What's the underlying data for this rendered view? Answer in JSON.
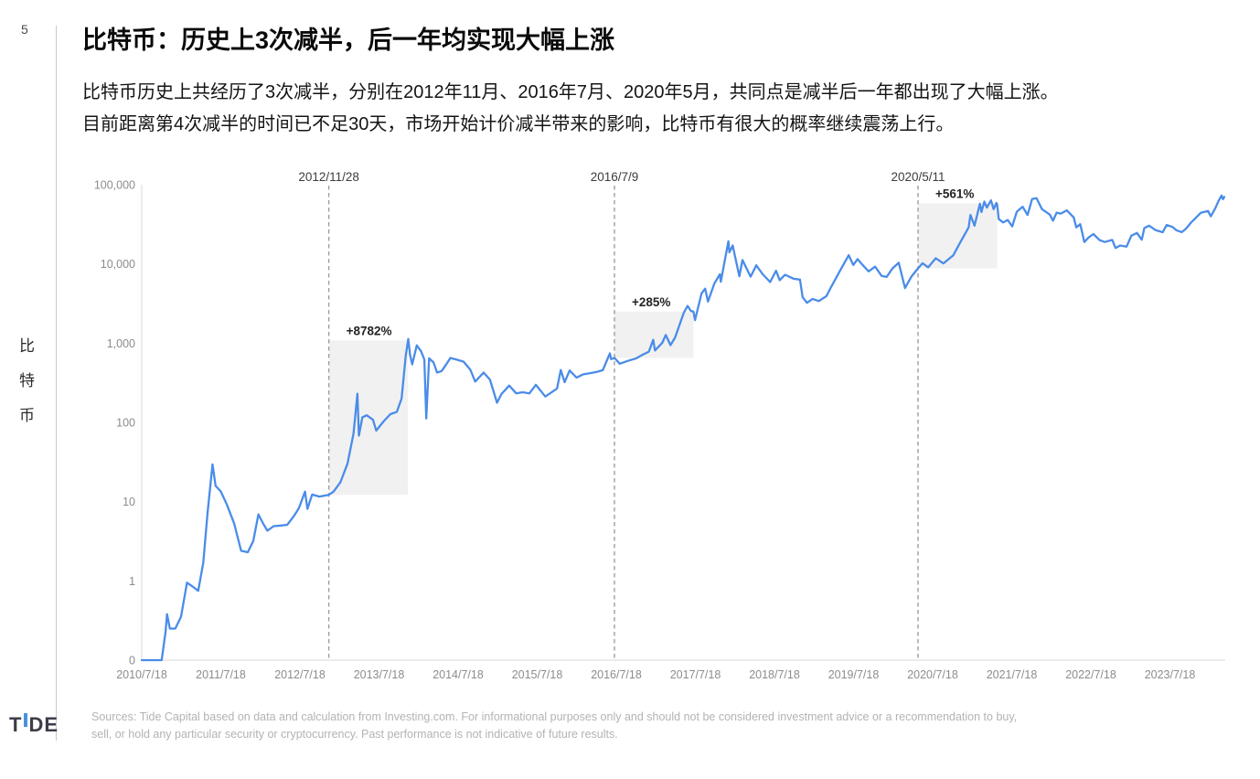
{
  "page": {
    "number": "5"
  },
  "sidebar": {
    "vertical_label": "比特币",
    "logo": {
      "left": "T",
      "right": "DE"
    }
  },
  "header": {
    "title": "比特币：历史上3次减半，后一年均实现大幅上涨"
  },
  "intro": {
    "line1": "比特币历史上共经历了3次减半，分别在2012年11月、2016年7月、2020年5月，共同点是减半后一年都出现了大幅上涨。",
    "line2": "目前距离第4次减半的时间已不足30天，市场开始计价减半带来的影响，比特币有很大的概率继续震荡上行。"
  },
  "footer": {
    "line1": "Sources: Tide Capital based on data and calculation from Investing.com. For informational purposes only and should not be considered investment advice or a recommendation to buy,",
    "line2": "sell, or hold any particular security or cryptocurrency. Past performance is not indicative of future results."
  },
  "colors": {
    "price_line": "#4a8ce8",
    "accent_blue": "#4a90e2",
    "dashed_line": "#9e9e9e",
    "region_fill": "#f1f1f1",
    "axis_line": "#d8d8d8",
    "tick_text": "#8c8c8c",
    "date_label": "#3d3d3d",
    "gain_label": "#242424"
  },
  "chart_data": {
    "type": "line",
    "title": "",
    "xlabel": "",
    "ylabel": "",
    "x_axis": {
      "start_date": "2010-07-18",
      "tick_labels": [
        "2010/7/18",
        "2011/7/18",
        "2012/7/18",
        "2013/7/18",
        "2014/7/18",
        "2015/7/18",
        "2016/7/18",
        "2017/7/18",
        "2018/7/18",
        "2019/7/18",
        "2020/7/18",
        "2021/7/18",
        "2022/7/18",
        "2023/7/18"
      ]
    },
    "y_axis": {
      "scale": "log",
      "tick_labels": [
        "0",
        "1",
        "10",
        "100",
        "1,000",
        "10,000",
        "100,000"
      ],
      "tick_values": [
        0.1,
        1,
        10,
        100,
        1000,
        10000,
        100000
      ],
      "range": [
        0.1,
        100000
      ]
    },
    "grid": false,
    "legend": false,
    "halvings": [
      {
        "date": "2012-11-28",
        "label": "2012/11/28",
        "gain_label": "+8782%",
        "price_at_halving": 12.2,
        "price_one_year_later": 1083
      },
      {
        "date": "2016-07-09",
        "label": "2016/7/9",
        "gain_label": "+285%",
        "price_at_halving": 650,
        "price_one_year_later": 2502
      },
      {
        "date": "2020-05-11",
        "label": "2020/5/11",
        "gain_label": "+561%",
        "price_at_halving": 8800,
        "price_one_year_later": 58170
      }
    ],
    "series": [
      {
        "name": "BTC price (USD)",
        "points": [
          [
            "2010-07-18",
            0.07
          ],
          [
            "2010-08-20",
            0.07
          ],
          [
            "2010-09-15",
            0.06
          ],
          [
            "2010-10-10",
            0.09
          ],
          [
            "2010-10-18",
            0.1
          ],
          [
            "2010-11-05",
            0.23
          ],
          [
            "2010-11-12",
            0.38
          ],
          [
            "2010-11-25",
            0.25
          ],
          [
            "2010-12-20",
            0.25
          ],
          [
            "2011-01-15",
            0.35
          ],
          [
            "2011-02-12",
            0.95
          ],
          [
            "2011-03-10",
            0.85
          ],
          [
            "2011-04-05",
            0.75
          ],
          [
            "2011-04-28",
            1.7
          ],
          [
            "2011-05-18",
            7.2
          ],
          [
            "2011-06-10",
            29.5
          ],
          [
            "2011-06-24",
            15.8
          ],
          [
            "2011-07-18",
            13.5
          ],
          [
            "2011-08-15",
            9.2
          ],
          [
            "2011-09-18",
            5.3
          ],
          [
            "2011-10-20",
            2.4
          ],
          [
            "2011-11-20",
            2.3
          ],
          [
            "2011-12-15",
            3.2
          ],
          [
            "2012-01-08",
            6.9
          ],
          [
            "2012-01-28",
            5.4
          ],
          [
            "2012-02-18",
            4.3
          ],
          [
            "2012-03-18",
            4.9
          ],
          [
            "2012-04-20",
            5.0
          ],
          [
            "2012-05-20",
            5.1
          ],
          [
            "2012-06-20",
            6.6
          ],
          [
            "2012-07-12",
            8.2
          ],
          [
            "2012-08-10",
            13.4
          ],
          [
            "2012-08-21",
            8.1
          ],
          [
            "2012-09-12",
            12.3
          ],
          [
            "2012-10-15",
            11.6
          ],
          [
            "2012-11-28",
            12.2
          ],
          [
            "2012-12-20",
            13.4
          ],
          [
            "2013-01-20",
            17.5
          ],
          [
            "2013-02-22",
            30
          ],
          [
            "2013-03-22",
            72
          ],
          [
            "2013-04-09",
            230
          ],
          [
            "2013-04-16",
            68
          ],
          [
            "2013-05-02",
            116
          ],
          [
            "2013-05-22",
            123
          ],
          [
            "2013-06-20",
            108
          ],
          [
            "2013-07-05",
            79
          ],
          [
            "2013-08-08",
            103
          ],
          [
            "2013-09-08",
            127
          ],
          [
            "2013-10-08",
            136
          ],
          [
            "2013-10-30",
            200
          ],
          [
            "2013-11-18",
            690
          ],
          [
            "2013-11-30",
            1130
          ],
          [
            "2013-12-08",
            720
          ],
          [
            "2013-12-18",
            540
          ],
          [
            "2014-01-08",
            940
          ],
          [
            "2014-01-28",
            790
          ],
          [
            "2014-02-12",
            620
          ],
          [
            "2014-02-21",
            112
          ],
          [
            "2014-03-06",
            645
          ],
          [
            "2014-03-27",
            570
          ],
          [
            "2014-04-12",
            425
          ],
          [
            "2014-05-03",
            445
          ],
          [
            "2014-05-28",
            560
          ],
          [
            "2014-06-12",
            650
          ],
          [
            "2014-07-12",
            618
          ],
          [
            "2014-08-12",
            585
          ],
          [
            "2014-09-12",
            465
          ],
          [
            "2014-10-05",
            328
          ],
          [
            "2014-11-13",
            425
          ],
          [
            "2014-12-12",
            348
          ],
          [
            "2015-01-14",
            177
          ],
          [
            "2015-02-03",
            228
          ],
          [
            "2015-03-11",
            292
          ],
          [
            "2015-04-12",
            233
          ],
          [
            "2015-05-12",
            240
          ],
          [
            "2015-06-12",
            232
          ],
          [
            "2015-07-12",
            298
          ],
          [
            "2015-08-25",
            212
          ],
          [
            "2015-09-15",
            232
          ],
          [
            "2015-10-18",
            268
          ],
          [
            "2015-11-04",
            458
          ],
          [
            "2015-11-22",
            322
          ],
          [
            "2015-12-15",
            452
          ],
          [
            "2016-01-16",
            368
          ],
          [
            "2016-02-16",
            404
          ],
          [
            "2016-03-16",
            416
          ],
          [
            "2016-04-16",
            432
          ],
          [
            "2016-05-16",
            456
          ],
          [
            "2016-06-18",
            744
          ],
          [
            "2016-06-24",
            628
          ],
          [
            "2016-07-09",
            652
          ],
          [
            "2016-08-02",
            550
          ],
          [
            "2016-09-15",
            606
          ],
          [
            "2016-10-15",
            638
          ],
          [
            "2016-11-15",
            712
          ],
          [
            "2016-12-15",
            782
          ],
          [
            "2017-01-04",
            1100
          ],
          [
            "2017-01-12",
            810
          ],
          [
            "2017-02-15",
            1012
          ],
          [
            "2017-03-03",
            1268
          ],
          [
            "2017-03-25",
            945
          ],
          [
            "2017-04-15",
            1180
          ],
          [
            "2017-05-25",
            2420
          ],
          [
            "2017-06-12",
            2950
          ],
          [
            "2017-06-27",
            2550
          ],
          [
            "2017-07-09",
            2505
          ],
          [
            "2017-07-16",
            1955
          ],
          [
            "2017-08-15",
            4230
          ],
          [
            "2017-09-01",
            4880
          ],
          [
            "2017-09-14",
            3350
          ],
          [
            "2017-10-13",
            5640
          ],
          [
            "2017-11-08",
            7400
          ],
          [
            "2017-11-12",
            5950
          ],
          [
            "2017-12-17",
            19300
          ],
          [
            "2017-12-22",
            14000
          ],
          [
            "2018-01-06",
            17100
          ],
          [
            "2018-02-06",
            7000
          ],
          [
            "2018-02-20",
            11200
          ],
          [
            "2018-03-30",
            6900
          ],
          [
            "2018-04-25",
            9600
          ],
          [
            "2018-05-25",
            7400
          ],
          [
            "2018-06-28",
            5900
          ],
          [
            "2018-07-25",
            8200
          ],
          [
            "2018-08-11",
            6250
          ],
          [
            "2018-09-05",
            7300
          ],
          [
            "2018-10-15",
            6500
          ],
          [
            "2018-11-13",
            6350
          ],
          [
            "2018-11-25",
            3800
          ],
          [
            "2018-12-15",
            3230
          ],
          [
            "2019-01-10",
            3620
          ],
          [
            "2019-02-08",
            3400
          ],
          [
            "2019-03-15",
            3920
          ],
          [
            "2019-04-02",
            4900
          ],
          [
            "2019-05-15",
            8050
          ],
          [
            "2019-06-26",
            12900
          ],
          [
            "2019-07-17",
            9700
          ],
          [
            "2019-08-06",
            11500
          ],
          [
            "2019-08-28",
            9750
          ],
          [
            "2019-09-26",
            8050
          ],
          [
            "2019-10-26",
            9250
          ],
          [
            "2019-11-25",
            7050
          ],
          [
            "2019-12-18",
            6850
          ],
          [
            "2020-01-14",
            8800
          ],
          [
            "2020-02-12",
            10350
          ],
          [
            "2020-03-12",
            4950
          ],
          [
            "2020-04-10",
            6900
          ],
          [
            "2020-05-11",
            8800
          ],
          [
            "2020-06-01",
            10200
          ],
          [
            "2020-06-27",
            9050
          ],
          [
            "2020-08-01",
            11800
          ],
          [
            "2020-09-05",
            10150
          ],
          [
            "2020-10-20",
            12800
          ],
          [
            "2020-11-24",
            19150
          ],
          [
            "2020-12-31",
            29000
          ],
          [
            "2021-01-08",
            41500
          ],
          [
            "2021-01-27",
            30400
          ],
          [
            "2021-02-21",
            57500
          ],
          [
            "2021-02-28",
            45200
          ],
          [
            "2021-03-13",
            61200
          ],
          [
            "2021-03-25",
            51300
          ],
          [
            "2021-04-13",
            63500
          ],
          [
            "2021-04-25",
            49000
          ],
          [
            "2021-05-08",
            58800
          ],
          [
            "2021-05-11",
            56700
          ],
          [
            "2021-05-19",
            36700
          ],
          [
            "2021-06-08",
            33400
          ],
          [
            "2021-06-29",
            35900
          ],
          [
            "2021-07-20",
            29800
          ],
          [
            "2021-08-10",
            45600
          ],
          [
            "2021-09-06",
            52700
          ],
          [
            "2021-09-29",
            41500
          ],
          [
            "2021-10-20",
            66000
          ],
          [
            "2021-11-09",
            67500
          ],
          [
            "2021-12-04",
            49200
          ],
          [
            "2022-01-10",
            41800
          ],
          [
            "2022-01-24",
            35100
          ],
          [
            "2022-02-10",
            44400
          ],
          [
            "2022-03-01",
            43200
          ],
          [
            "2022-03-29",
            47400
          ],
          [
            "2022-04-30",
            38600
          ],
          [
            "2022-05-12",
            28900
          ],
          [
            "2022-05-30",
            31700
          ],
          [
            "2022-06-18",
            18900
          ],
          [
            "2022-07-08",
            21600
          ],
          [
            "2022-07-30",
            23800
          ],
          [
            "2022-08-27",
            20000
          ],
          [
            "2022-09-20",
            18900
          ],
          [
            "2022-10-25",
            20100
          ],
          [
            "2022-11-09",
            15900
          ],
          [
            "2022-11-30",
            17100
          ],
          [
            "2022-12-30",
            16550
          ],
          [
            "2023-01-21",
            22700
          ],
          [
            "2023-02-16",
            24600
          ],
          [
            "2023-03-10",
            20200
          ],
          [
            "2023-03-22",
            28300
          ],
          [
            "2023-04-13",
            30400
          ],
          [
            "2023-05-12",
            26800
          ],
          [
            "2023-06-15",
            25100
          ],
          [
            "2023-07-03",
            31000
          ],
          [
            "2023-07-30",
            29300
          ],
          [
            "2023-08-17",
            26600
          ],
          [
            "2023-09-11",
            25200
          ],
          [
            "2023-10-01",
            27900
          ],
          [
            "2023-10-23",
            33100
          ],
          [
            "2023-11-09",
            36700
          ],
          [
            "2023-12-08",
            44200
          ],
          [
            "2024-01-10",
            46600
          ],
          [
            "2024-01-23",
            39900
          ],
          [
            "2024-02-12",
            49900
          ],
          [
            "2024-02-28",
            62400
          ],
          [
            "2024-03-13",
            73000
          ],
          [
            "2024-03-19",
            65500
          ],
          [
            "2024-03-25",
            70000
          ]
        ]
      }
    ]
  }
}
